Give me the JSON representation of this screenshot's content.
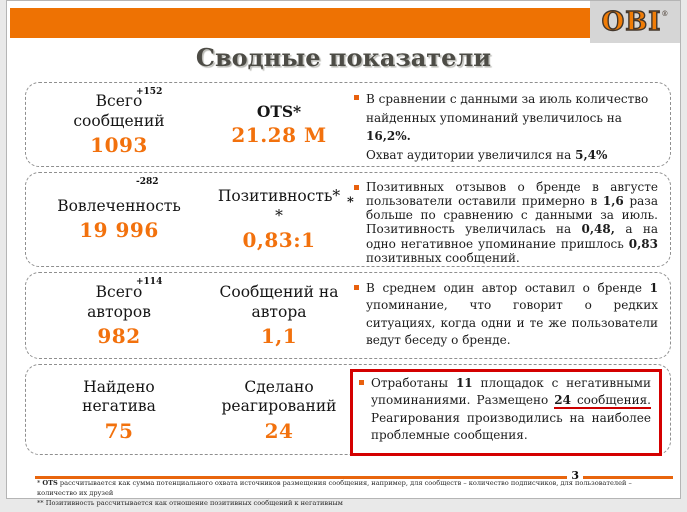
{
  "header": {
    "logo_text": "OBI",
    "registered_mark": "®"
  },
  "title": "Сводные показатели",
  "colors": {
    "brand_orange": "#EE7203",
    "value_orange": "#F2710D",
    "highlight_red": "#D40000",
    "title_gray": "#4D4C46",
    "logo_background": "#D6D6D6"
  },
  "rows": [
    {
      "name": "total-messages",
      "metrics": [
        {
          "lines": [
            "Всего",
            "сообщений"
          ],
          "sup": "+152",
          "value": "1093",
          "bold": 0
        },
        {
          "lines": [
            "OTS*"
          ],
          "sup": "",
          "value": "21.28 M",
          "bold": 1
        }
      ],
      "justify": 0,
      "highlight": 0,
      "margin_note": "",
      "text": [
        {
          "t": "В сравнении с данными за июль количество найденных упоминаний увеличилось на "
        },
        {
          "t": "16,2%.",
          "b": 1
        },
        {
          "br": 1
        },
        {
          "t": "Охват аудитории увеличился на "
        },
        {
          "t": "5,4%",
          "b": 1
        }
      ]
    },
    {
      "name": "engagement-positivity",
      "metrics": [
        {
          "lines": [
            "Вовлеченность"
          ],
          "sup": "-282",
          "value": "19 996",
          "bold": 0
        },
        {
          "lines": [
            "Позитивность*",
            "*"
          ],
          "sup": "",
          "value": "0,83:1",
          "bold": 0
        }
      ],
      "justify": 1,
      "highlight": 0,
      "margin_note": "*",
      "text": [
        {
          "t": "Позитивных отзывов о бренде в августе пользователи оставили примерно в "
        },
        {
          "t": "1,6",
          "b": 1
        },
        {
          "t": " раза больше по сравнению с данными за июль. Позитивность увеличилась на "
        },
        {
          "t": "0,48,",
          "b": 1
        },
        {
          "t": " а на одно негативное упоминание пришлось "
        },
        {
          "t": "0,83",
          "b": 1
        },
        {
          "t": " позитивных сообщений."
        }
      ]
    },
    {
      "name": "total-authors",
      "metrics": [
        {
          "lines": [
            "Всего",
            "авторов"
          ],
          "sup": "+114",
          "value": "982",
          "bold": 0
        },
        {
          "lines": [
            "Сообщений на",
            "автора"
          ],
          "sup": "",
          "value": "1,1",
          "bold": 0
        }
      ],
      "justify": 1,
      "highlight": 0,
      "margin_note": "",
      "text": [
        {
          "t": "В среднем один автор оставил о бренде "
        },
        {
          "t": "1",
          "b": 1
        },
        {
          "t": " упоминание, что говорит о редких ситуациях, когда одни и те же пользователи ведут беседу о бренде."
        }
      ]
    },
    {
      "name": "negative-reactions",
      "metrics": [
        {
          "lines": [
            "Найдено",
            "негатива"
          ],
          "sup": "",
          "value": "75",
          "bold": 0
        },
        {
          "lines": [
            "Сделано",
            "реагирований"
          ],
          "sup": "",
          "value": "24",
          "bold": 0
        }
      ],
      "justify": 1,
      "highlight": 1,
      "margin_note": "",
      "text": [
        {
          "t": "Отработаны "
        },
        {
          "t": "11",
          "b": 1
        },
        {
          "t": " площадок с негативными упоминаниями. Размещено "
        },
        {
          "t": "24",
          "b": 1,
          "u": 1
        },
        {
          "t": " сообщения.",
          "u": 1
        },
        {
          "t": " Реагирования производились на наиболее проблемные сообщения."
        }
      ]
    }
  ],
  "footer": {
    "page_number": "3",
    "footnotes": [
      [
        {
          "t": "* "
        },
        {
          "t": "OTS",
          "b": 1
        },
        {
          "t": " рассчитывается как сумма потенциального охвата источников размещения сообщения, например, для сообществ – количество подписчиков, для пользователей – количество их друзей"
        }
      ],
      [
        {
          "t": "** Позитивность рассчитывается как отношение позитивных сообщений к негативным"
        }
      ]
    ]
  }
}
